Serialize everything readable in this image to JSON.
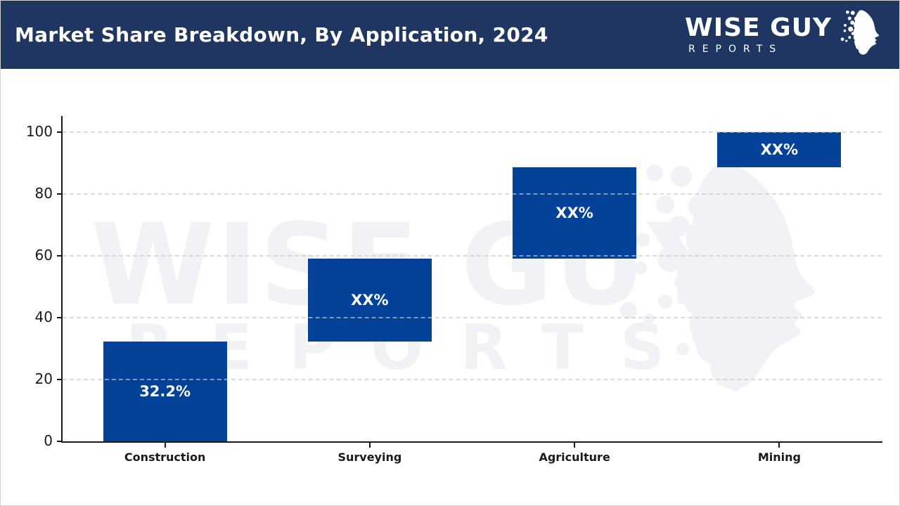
{
  "header": {
    "title": "Market Share Breakdown, By Application, 2024",
    "logo": {
      "name_top": "WISE GUY",
      "name_bottom": "REPORTS"
    }
  },
  "watermark": {
    "text_top": "WISE GUY",
    "text_bottom": "REPORTS"
  },
  "chart_data": {
    "type": "bar",
    "variant": "waterfall-floating-bars",
    "title": "Market Share Breakdown, By Application, 2024",
    "categories": [
      "Construction",
      "Surveying",
      "Agriculture",
      "Mining"
    ],
    "segments": [
      {
        "category": "Construction",
        "start": 0,
        "end": 32.2,
        "label": "32.2%"
      },
      {
        "category": "Surveying",
        "start": 32.2,
        "end": 59.0,
        "label": "XX%"
      },
      {
        "category": "Agriculture",
        "start": 59.0,
        "end": 88.6,
        "label": "XX%"
      },
      {
        "category": "Mining",
        "start": 88.6,
        "end": 100.0,
        "label": "XX%"
      }
    ],
    "xlabel": "",
    "ylabel": "",
    "yticks": [
      0,
      20,
      40,
      60,
      80,
      100
    ],
    "ylim": [
      0,
      105
    ],
    "grid": {
      "axis": "y",
      "style": "dashed"
    },
    "legend": "none"
  },
  "colors": {
    "header_bg": "#203662",
    "bar": "#04429a",
    "bar_label": "#ffffff",
    "grid": "#c8c8c8",
    "axis": "#1a1a1a",
    "watermark": "#f1f2f5",
    "page_bg": "#ffffff"
  }
}
